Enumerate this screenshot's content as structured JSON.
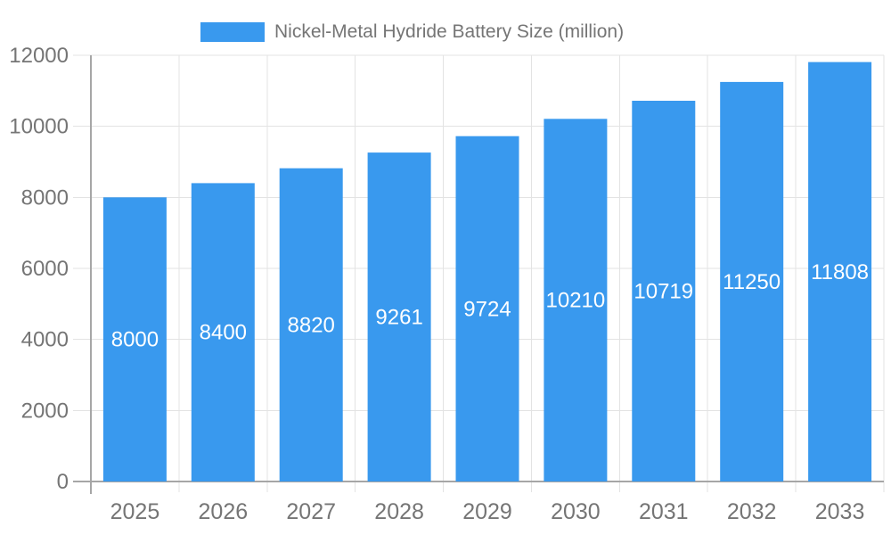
{
  "chart_data": {
    "type": "bar",
    "title": "Nickel-Metal Hydride Battery Size (million)",
    "legend_position": "top",
    "categories": [
      "2025",
      "2026",
      "2027",
      "2028",
      "2029",
      "2030",
      "2031",
      "2032",
      "2033"
    ],
    "series": [
      {
        "name": "Nickel-Metal Hydride Battery Size (million)",
        "values": [
          8000,
          8400,
          8820,
          9261,
          9724,
          10210,
          10719,
          11250,
          11808
        ]
      }
    ],
    "xlabel": "",
    "ylabel": "",
    "ylim": [
      0,
      12000
    ],
    "ytick_step": 2000,
    "yticks": [
      0,
      2000,
      4000,
      6000,
      8000,
      10000,
      12000
    ],
    "grid": true,
    "bar_value_labels_inside": true,
    "colors": {
      "bar": "#3999ee",
      "bar_label": "#ffffff",
      "grid": "#e3e3e3",
      "axis": "#a6a6a6",
      "text": "#757575",
      "background": "#ffffff"
    }
  }
}
